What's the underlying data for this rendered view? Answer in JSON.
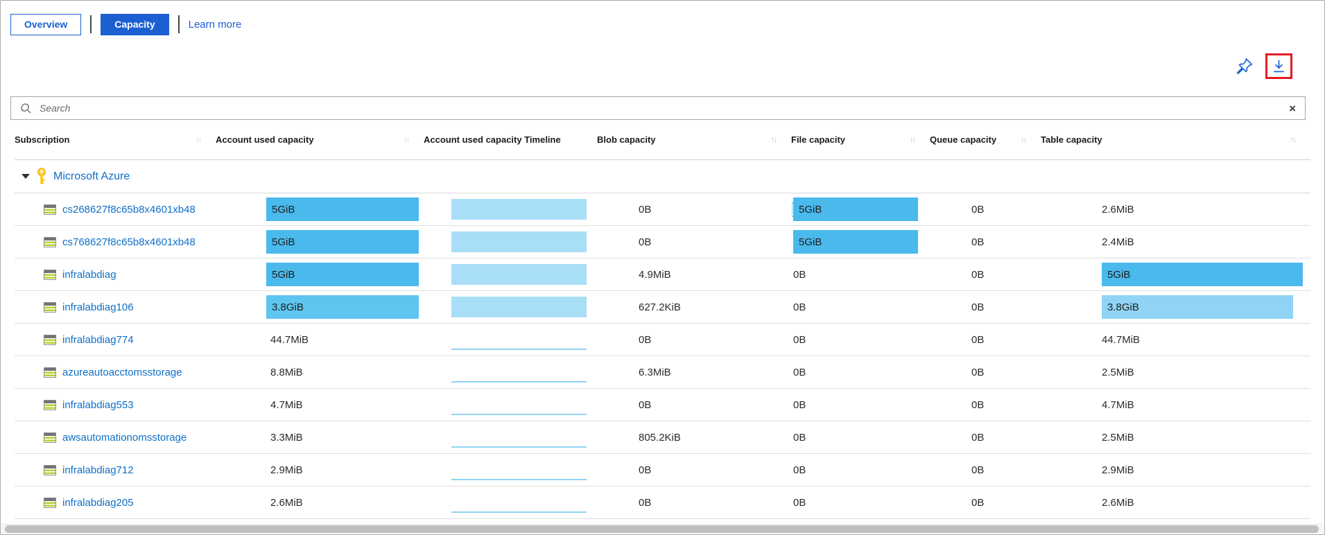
{
  "tabs": {
    "overview": "Overview",
    "capacity": "Capacity",
    "learn_more": "Learn more"
  },
  "toolbar": {
    "pin_icon": "pin-icon",
    "download_icon": "download-icon",
    "download_highlighted": true
  },
  "search": {
    "placeholder": "Search",
    "clear_glyph": "×"
  },
  "sort_glyph": "↑↓",
  "table": {
    "columns": [
      {
        "label": "Subscription",
        "sortable": true
      },
      {
        "label": "Account used capacity",
        "sortable": true
      },
      {
        "label": "Account used capacity Timeline",
        "sortable": false
      },
      {
        "label": "Blob capacity",
        "sortable": true
      },
      {
        "label": "File capacity",
        "sortable": true
      },
      {
        "label": "Queue capacity",
        "sortable": true
      },
      {
        "label": "Table capacity",
        "sortable": true
      }
    ],
    "group": {
      "label": "Microsoft Azure",
      "expanded": true
    },
    "rows": [
      {
        "name": "cs268627f8c65b8x4601xb48",
        "account_used": {
          "text": "5GiB",
          "bar": "dark",
          "frac": 1
        },
        "timeline": "bar",
        "blob": "0B",
        "file": {
          "text": "5GiB",
          "bar": "dark",
          "frac": 1,
          "focused": true
        },
        "queue": "0B",
        "table_capacity": {
          "text": "2.6MiB",
          "bar": null
        }
      },
      {
        "name": "cs768627f8c65b8x4601xb48",
        "account_used": {
          "text": "5GiB",
          "bar": "dark",
          "frac": 1
        },
        "timeline": "bar",
        "blob": "0B",
        "file": {
          "text": "5GiB",
          "bar": "dark",
          "frac": 1
        },
        "queue": "0B",
        "table_capacity": {
          "text": "2.4MiB",
          "bar": null
        }
      },
      {
        "name": "infralabdiag",
        "account_used": {
          "text": "5GiB",
          "bar": "dark",
          "frac": 1
        },
        "timeline": "bar",
        "blob": "4.9MiB",
        "file": {
          "text": "0B",
          "bar": null
        },
        "queue": "0B",
        "table_capacity": {
          "text": "5GiB",
          "bar": "dark",
          "frac": 1
        }
      },
      {
        "name": "infralabdiag106",
        "account_used": {
          "text": "3.8GiB",
          "bar": "light",
          "frac": 1
        },
        "timeline": "bar",
        "blob": "627.2KiB",
        "file": {
          "text": "0B",
          "bar": null
        },
        "queue": "0B",
        "table_capacity": {
          "text": "3.8GiB",
          "bar": "lighter",
          "frac": 0.95
        }
      },
      {
        "name": "infralabdiag774",
        "account_used": {
          "text": "44.7MiB",
          "bar": null
        },
        "timeline": "line",
        "blob": "0B",
        "file": {
          "text": "0B",
          "bar": null
        },
        "queue": "0B",
        "table_capacity": {
          "text": "44.7MiB",
          "bar": null
        }
      },
      {
        "name": "azureautoacctomsstorage",
        "account_used": {
          "text": "8.8MiB",
          "bar": null
        },
        "timeline": "line",
        "blob": "6.3MiB",
        "file": {
          "text": "0B",
          "bar": null
        },
        "queue": "0B",
        "table_capacity": {
          "text": "2.5MiB",
          "bar": null
        }
      },
      {
        "name": "infralabdiag553",
        "account_used": {
          "text": "4.7MiB",
          "bar": null
        },
        "timeline": "line",
        "blob": "0B",
        "file": {
          "text": "0B",
          "bar": null
        },
        "queue": "0B",
        "table_capacity": {
          "text": "4.7MiB",
          "bar": null
        }
      },
      {
        "name": "awsautomationomsstorage",
        "account_used": {
          "text": "3.3MiB",
          "bar": null
        },
        "timeline": "line",
        "blob": "805.2KiB",
        "file": {
          "text": "0B",
          "bar": null
        },
        "queue": "0B",
        "table_capacity": {
          "text": "2.5MiB",
          "bar": null
        }
      },
      {
        "name": "infralabdiag712",
        "account_used": {
          "text": "2.9MiB",
          "bar": null
        },
        "timeline": "line",
        "blob": "0B",
        "file": {
          "text": "0B",
          "bar": null
        },
        "queue": "0B",
        "table_capacity": {
          "text": "2.9MiB",
          "bar": null
        }
      },
      {
        "name": "infralabdiag205",
        "account_used": {
          "text": "2.6MiB",
          "bar": null
        },
        "timeline": "line",
        "blob": "0B",
        "file": {
          "text": "0B",
          "bar": null
        },
        "queue": "0B",
        "table_capacity": {
          "text": "2.6MiB",
          "bar": null
        }
      }
    ]
  },
  "colors": {
    "accent_blue": "#1b5fd2",
    "link_blue": "#0f6fc8",
    "bar_blue_dark": "#4ab9ec",
    "bar_blue_light": "#5ec5f0",
    "bar_blue_lighter": "#8fd4f4",
    "timeline_blue": "#a9def7",
    "highlight_red": "#e31b23"
  }
}
